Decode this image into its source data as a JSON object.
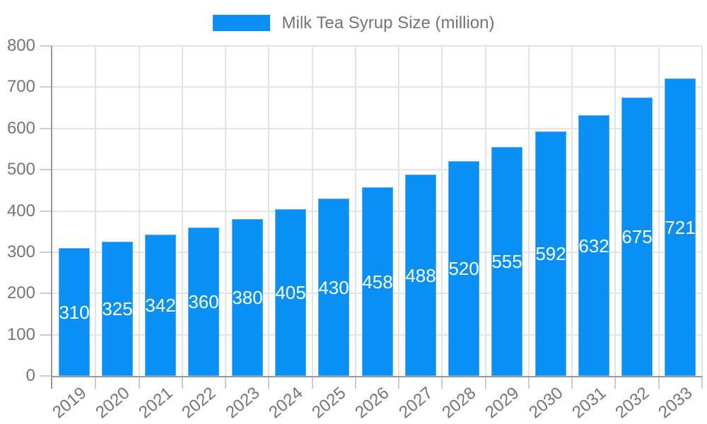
{
  "chart_data": {
    "type": "bar",
    "legend": "Milk Tea Syrup Size (million)",
    "legend_position": "top",
    "categories": [
      "2019",
      "2020",
      "2021",
      "2022",
      "2023",
      "2024",
      "2025",
      "2026",
      "2027",
      "2028",
      "2029",
      "2030",
      "2031",
      "2032",
      "2033"
    ],
    "series": [
      {
        "name": "Milk Tea Syrup Size (million)",
        "values": [
          310,
          325,
          342,
          360,
          380,
          405,
          430,
          458,
          488,
          520,
          555,
          592,
          632,
          675,
          721
        ]
      }
    ],
    "value_labels_shown": true,
    "xlabel": "",
    "ylabel": "",
    "ylim": [
      0,
      800
    ],
    "ytick_step": 100,
    "yticks": [
      0,
      100,
      200,
      300,
      400,
      500,
      600,
      700,
      800
    ],
    "grid": true,
    "colors": {
      "bar": "#0a8ff5",
      "bar_edge": "#58adf6",
      "grid": "#e3e3e3",
      "tick": "#cccccc",
      "axis": "#999999",
      "axis_label": "#757575",
      "value_label": "#ffffff",
      "background": "#ffffff"
    }
  }
}
